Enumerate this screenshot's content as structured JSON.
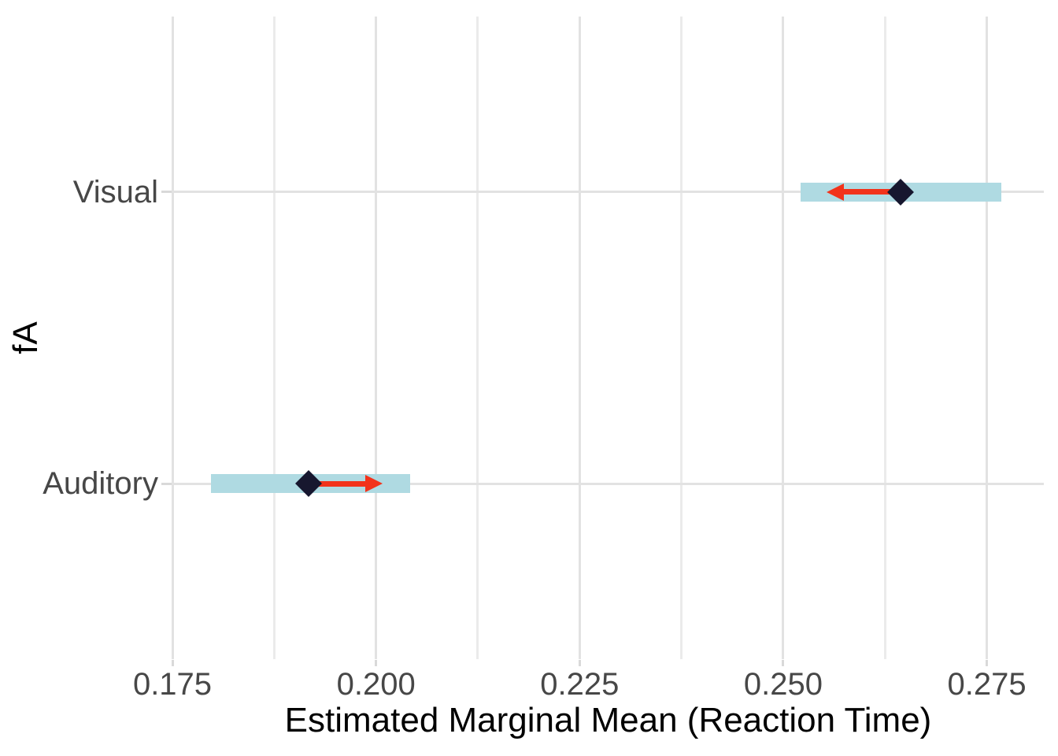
{
  "chart_data": {
    "type": "interval",
    "subtype": "emmeans-comparison-plot",
    "orientation": "horizontal",
    "title": "",
    "xlabel": "Estimated Marginal Mean (Reaction Time)",
    "ylabel": "fA",
    "xlim": [
      0.175,
      0.282
    ],
    "x_tick_values": [
      0.175,
      0.2,
      0.225,
      0.25,
      0.275
    ],
    "x_tick_labels": [
      "0.175",
      "0.200",
      "0.225",
      "0.250",
      "0.275"
    ],
    "x_minor_tick_values": [
      0.1875,
      0.2125,
      0.2375,
      0.2625
    ],
    "grid": "major-and-minor-vertical, row-horizontal",
    "legend_position": "none",
    "categories": [
      "Visual",
      "Auditory"
    ],
    "series": [
      {
        "category": "Visual",
        "mean": 0.2644,
        "ci_lower": 0.2521,
        "ci_upper": 0.2768,
        "comparison_arrow_end": 0.2553
      },
      {
        "category": "Auditory",
        "mean": 0.1917,
        "ci_lower": 0.1797,
        "ci_upper": 0.2042,
        "comparison_arrow_end": 0.2008
      }
    ],
    "colors": {
      "ci_bar": "#AFDAE2",
      "point": "#17172F",
      "arrow": "#F2331B",
      "grid_major": "#E2E2E2",
      "grid_minor": "#EBEBEB",
      "tick_mark": "#D9D9D9",
      "axis_text": "#474747",
      "axis_title": "#000000",
      "background": "#FFFFFF"
    }
  }
}
